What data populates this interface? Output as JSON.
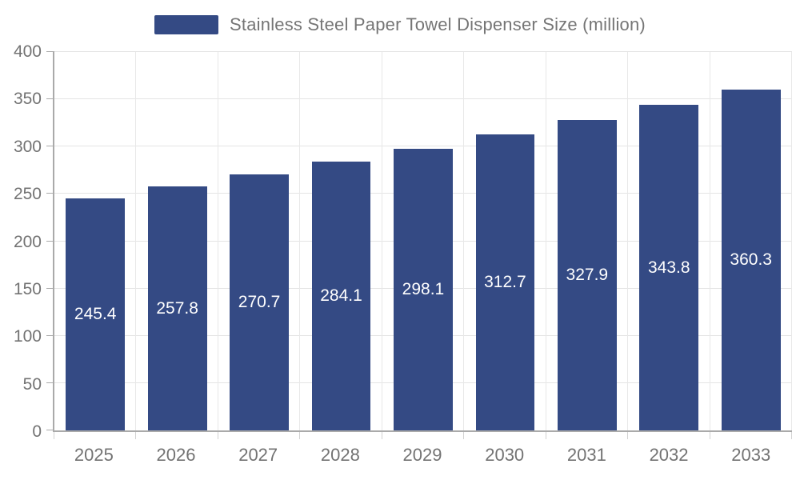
{
  "chart_data": {
    "type": "bar",
    "title": "Stainless Steel Paper Towel Dispenser Size (million)",
    "categories": [
      "2025",
      "2026",
      "2027",
      "2028",
      "2029",
      "2030",
      "2031",
      "2032",
      "2033"
    ],
    "values": [
      245.4,
      257.8,
      270.7,
      284.1,
      298.1,
      312.7,
      327.9,
      343.8,
      360.3
    ],
    "xlabel": "",
    "ylabel": "",
    "ylim": [
      0,
      400
    ],
    "ytick_step": 50,
    "grid": true,
    "legend_position": "top",
    "legend_entries": [
      "Stainless Steel Paper Towel Dispenser Size (million)"
    ],
    "data_labels_position": "inside-center"
  },
  "colors": {
    "bar_fill": "#344a84",
    "bar_label_text": "#ffffff",
    "legend_text": "#757575",
    "axis_line": "#aaaaaa",
    "axis_tick_label": "#737373",
    "gridline": "#e3e3e3"
  }
}
